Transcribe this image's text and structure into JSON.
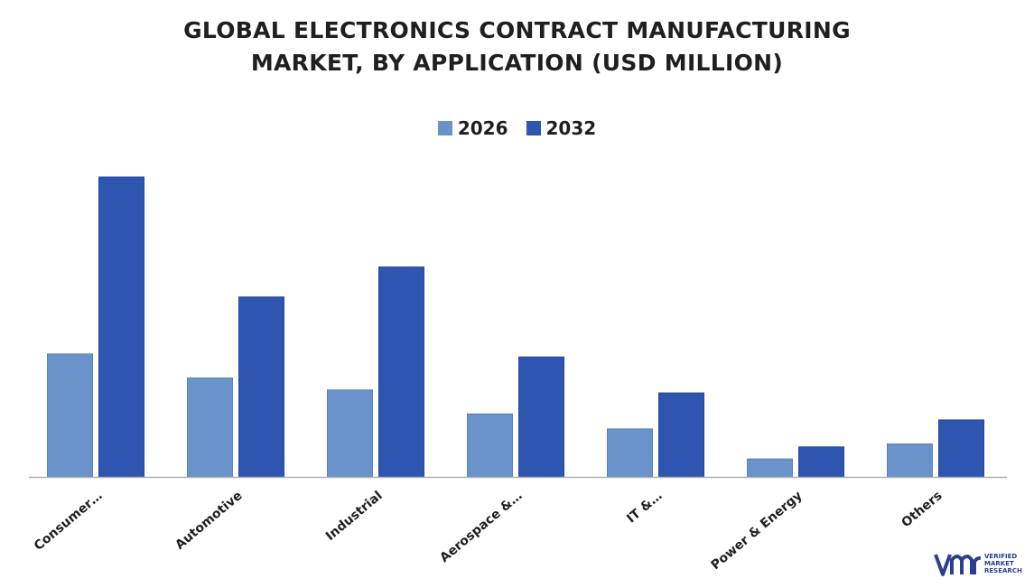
{
  "title_lines": [
    "GLOBAL ELECTRONICS CONTRACT MANUFACTURING",
    "MARKET, BY APPLICATION (USD MILLION)"
  ],
  "colors": {
    "s2026": "#6a93cc",
    "s2032": "#2e55b0",
    "axis": "#b0b0b0",
    "text": "#1f1f1f",
    "logo": "#2b3f8f"
  },
  "chart_data": {
    "type": "bar",
    "title": "GLOBAL ELECTRONICS CONTRACT MANUFACTURING MARKET, BY APPLICATION (USD MILLION)",
    "categories": [
      "Consumer…",
      "Automotive",
      "Industrial",
      "Aerospace &…",
      "IT &…",
      "Power & Energy",
      "Others"
    ],
    "series": [
      {
        "name": "2026",
        "values": [
          41,
          33,
          29,
          21,
          16,
          6,
          11
        ]
      },
      {
        "name": "2032",
        "values": [
          100,
          60,
          70,
          40,
          28,
          10,
          19
        ]
      }
    ],
    "ylim": [
      0,
      100
    ],
    "legend_position": "top-center",
    "grid": false
  },
  "logo": {
    "mark": "VMR",
    "lines": [
      "VERIFIED",
      "MARKET",
      "RESEARCH"
    ],
    "reg": "®"
  }
}
